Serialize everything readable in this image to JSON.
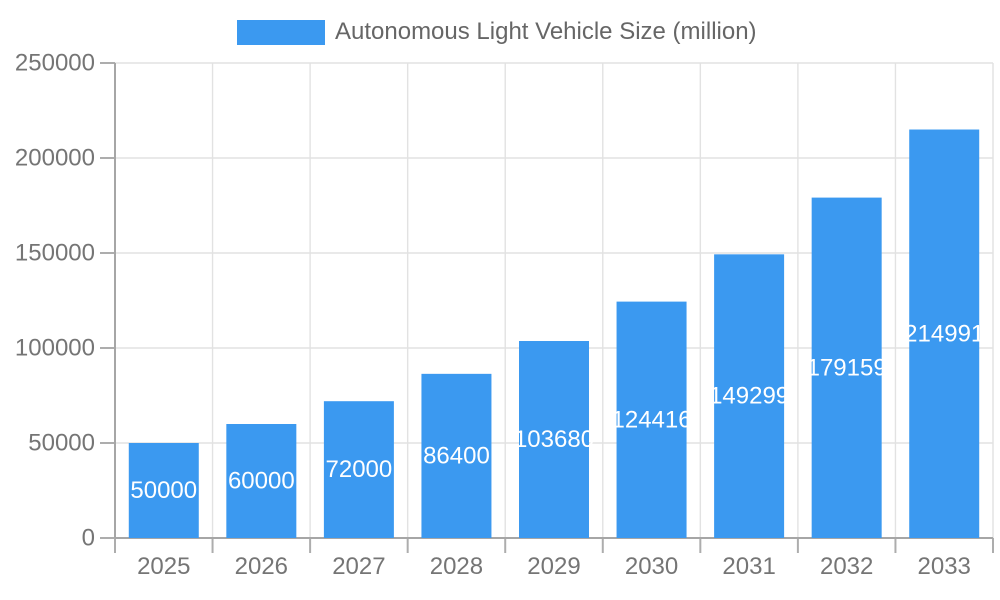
{
  "chart_data": {
    "type": "bar",
    "title": "Autonomous Light Vehicle Size (million)",
    "legend_entries": [
      "Autonomous Light Vehicle Size (million)"
    ],
    "legend_position": "top",
    "categories": [
      "2025",
      "2026",
      "2027",
      "2028",
      "2029",
      "2030",
      "2031",
      "2032",
      "2033"
    ],
    "series": [
      {
        "name": "Autonomous Light Vehicle Size (million)",
        "values": [
          50000,
          60000,
          72000,
          86400,
          103680,
          124416,
          149299,
          179159,
          214991
        ]
      }
    ],
    "bar_value_labels": [
      "50000",
      "60000",
      "72000",
      "86400",
      "103680",
      "124416",
      "149299",
      "179159",
      "214991"
    ],
    "xlabel": "",
    "ylabel": "",
    "ylim": [
      0,
      250000
    ],
    "yticks": [
      0,
      50000,
      100000,
      150000,
      200000,
      250000
    ],
    "grid": true,
    "colors": {
      "bar": "#3b99f0",
      "bar_label": "#ffffff",
      "axis_text": "#757575",
      "legend_text": "#666666",
      "grid_line": "#e2e2e2",
      "axis_line": "#a6a6a6",
      "tick": "#adadad",
      "background": "#ffffff"
    }
  }
}
